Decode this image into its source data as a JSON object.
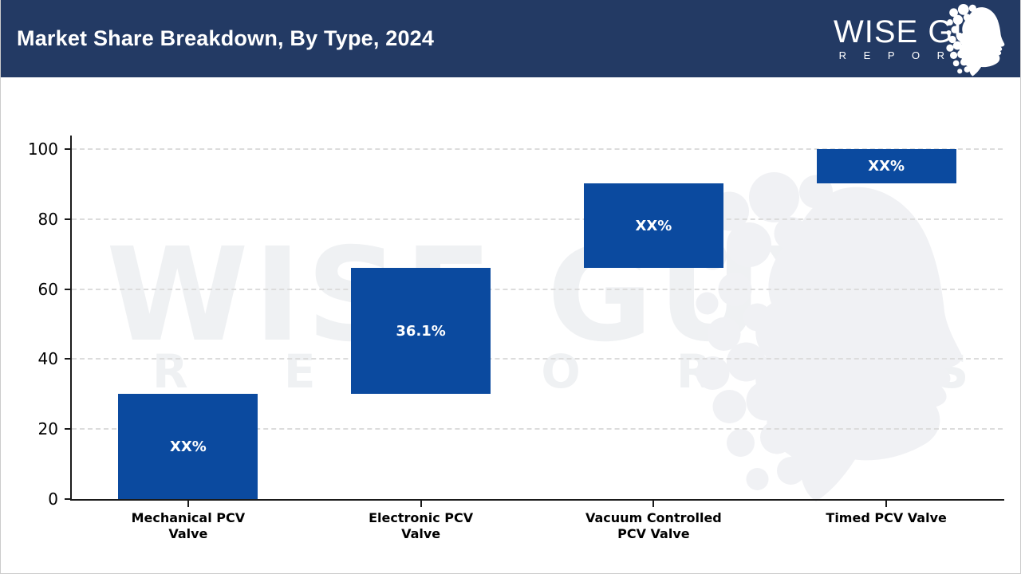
{
  "header": {
    "title": "Market Share Breakdown, By Type, 2024",
    "logo": {
      "line1": "WISE GUY",
      "line2": "R E P O R T S"
    }
  },
  "watermark": {
    "line1": "WISE GUY",
    "line2": "R E P O R T S"
  },
  "chart_data": {
    "type": "bar",
    "subtype": "waterfall",
    "title": "Market Share Breakdown, By Type, 2024",
    "categories": [
      [
        "Mechanical PCV",
        "Valve"
      ],
      [
        "Electronic PCV",
        "Valve"
      ],
      [
        "Vacuum Controlled",
        "PCV Valve"
      ],
      [
        "Timed PCV Valve"
      ]
    ],
    "bars": [
      {
        "label": "Mechanical PCV Valve",
        "start": 0,
        "end": 30,
        "increment": 30,
        "value_label": "XX%"
      },
      {
        "label": "Electronic PCV Valve",
        "start": 30,
        "end": 66.1,
        "increment": 36.1,
        "value_label": "36.1%"
      },
      {
        "label": "Vacuum Controlled PCV Valve",
        "start": 66.1,
        "end": 90.1,
        "increment": 24,
        "value_label": "XX%"
      },
      {
        "label": "Timed PCV Valve",
        "start": 90.1,
        "end": 100,
        "increment": 9.9,
        "value_label": "XX%"
      }
    ],
    "xlabel": "",
    "ylabel": "",
    "ylim": [
      0,
      100
    ],
    "yticks": [
      0,
      20,
      40,
      60,
      80,
      100
    ],
    "grid": "horizontal-dashed",
    "legend": null
  },
  "colors": {
    "header_bg": "#233a64",
    "bar": "#0b4a9f",
    "grid": "#dcdcdc",
    "axis": "#1a1a1a",
    "watermark": "#eff1f3",
    "title_text": "#ffffff"
  }
}
